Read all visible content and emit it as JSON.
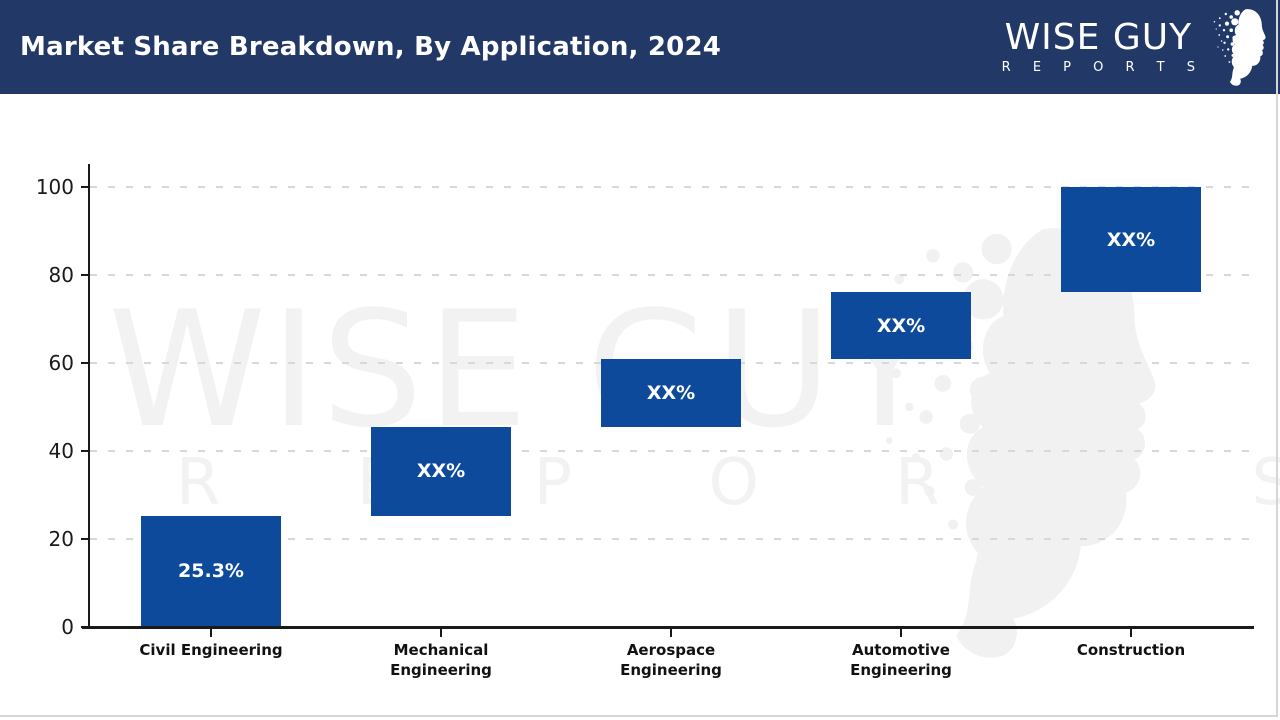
{
  "header": {
    "title": "Market Share Breakdown, By Application, 2024",
    "logo": {
      "name": "WISE GUY",
      "sub": "R E P O R T S"
    }
  },
  "watermark": {
    "name": "WISE GUY",
    "sub": "R E P O R T S"
  },
  "chart_data": {
    "type": "bar",
    "subtype": "waterfall",
    "title": "Market Share Breakdown, By Application, 2024",
    "categories": [
      "Civil Engineering",
      "Mechanical\nEngineering",
      "Aerospace\nEngineering",
      "Automotive\nEngineering",
      "Construction"
    ],
    "segments": [
      {
        "category": "Civil Engineering",
        "start": 0,
        "end": 25.3,
        "label": "25.3%"
      },
      {
        "category": "Mechanical\nEngineering",
        "start": 25.3,
        "end": 45.5,
        "label": "XX%"
      },
      {
        "category": "Aerospace\nEngineering",
        "start": 45.5,
        "end": 60.8,
        "label": "XX%"
      },
      {
        "category": "Automotive\nEngineering",
        "start": 60.8,
        "end": 76.1,
        "label": "XX%"
      },
      {
        "category": "Construction",
        "start": 76.1,
        "end": 100,
        "label": "XX%"
      }
    ],
    "yticks": [
      0,
      20,
      40,
      60,
      80,
      100
    ],
    "ylim": [
      0,
      105
    ],
    "grid": "horizontal-dashed",
    "legend": "none",
    "colors": {
      "bar": "#0d4a9c",
      "bar_label": "#ffffff",
      "axis": "#1a1a1a",
      "gridline": "#d8d8d8",
      "header_bg": "#223968",
      "watermark": "#f2f2f3"
    }
  }
}
